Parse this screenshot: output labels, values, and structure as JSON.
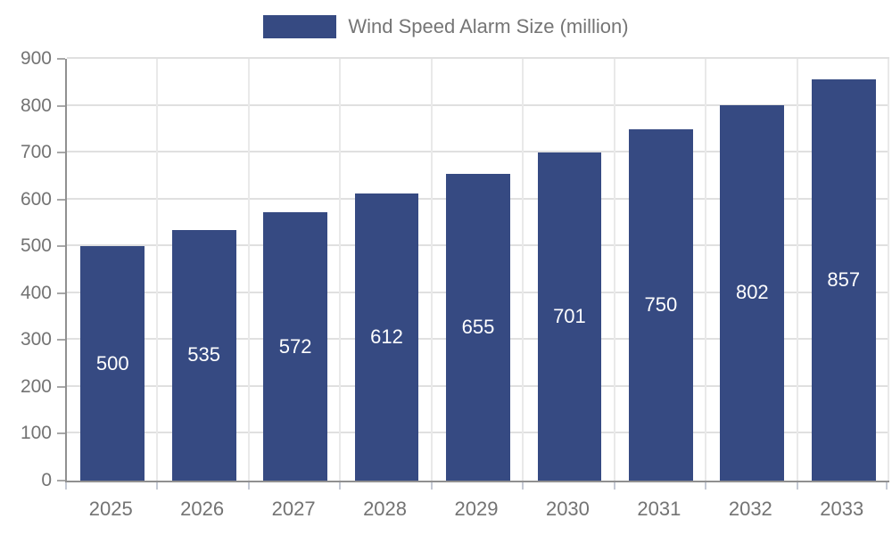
{
  "chart_data": {
    "type": "bar",
    "title": "Wind Speed Alarm Size (million)",
    "categories": [
      "2025",
      "2026",
      "2027",
      "2028",
      "2029",
      "2030",
      "2031",
      "2032",
      "2033"
    ],
    "values": [
      500,
      535,
      572,
      612,
      655,
      701,
      750,
      802,
      857
    ],
    "xlabel": "",
    "ylabel": "",
    "ylim": [
      0,
      900
    ],
    "yticks": [
      0,
      100,
      200,
      300,
      400,
      500,
      600,
      700,
      800,
      900
    ],
    "grid": true,
    "legend_position": "top-center",
    "bar_label_position": "inside-center",
    "colors": {
      "bar": "#364a82",
      "bar_label": "#ffffff",
      "axis_text": "#737373",
      "legend_text": "#757575",
      "grid_h": "#e0e0e0",
      "grid_v": "#e9e9e9",
      "spine": "#909090",
      "background": "#ffffff"
    }
  },
  "legend": {
    "label": "Wind Speed Alarm Size (million)"
  }
}
